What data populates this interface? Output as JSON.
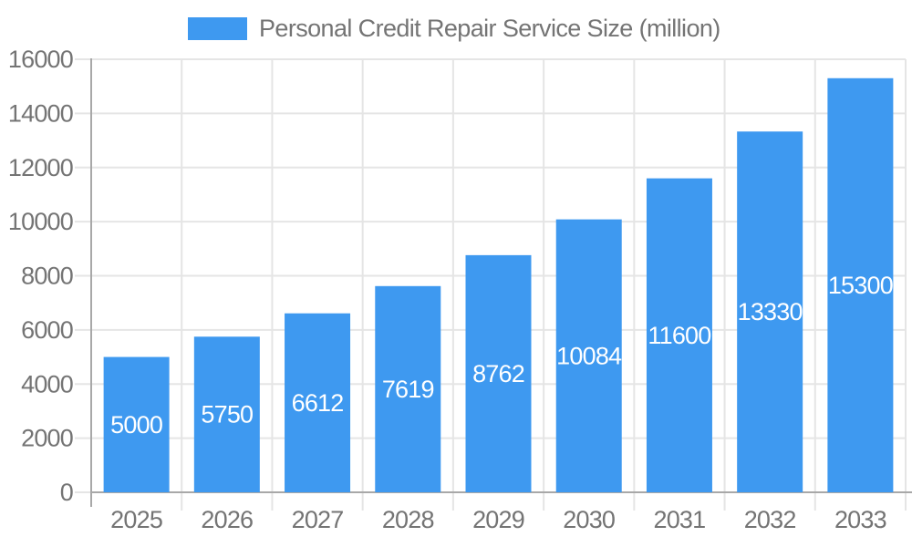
{
  "chart_data": {
    "type": "bar",
    "title": "",
    "series_name": "Personal Credit Repair Service Size (million)",
    "categories": [
      "2025",
      "2026",
      "2027",
      "2028",
      "2029",
      "2030",
      "2031",
      "2032",
      "2033"
    ],
    "values": [
      5000,
      5750,
      6612,
      7619,
      8762,
      10084,
      11600,
      13330,
      15300
    ],
    "bar_labels": [
      "5000",
      "5750",
      "6612",
      "7619",
      "8762",
      "10084",
      "11600",
      "13330",
      "15300"
    ],
    "xlabel": "",
    "ylabel": "",
    "ylim": [
      0,
      16000
    ],
    "yticks": [
      0,
      2000,
      4000,
      6000,
      8000,
      10000,
      12000,
      14000,
      16000
    ],
    "grid": true,
    "legend_position": "top",
    "value_label_position": "inside-center",
    "colors": {
      "bar": "#3E99F0",
      "bar_label": "#FFFFFF",
      "axis_text": "#747474",
      "axis_line": "#A8A8A8",
      "grid_line": "#E5E5E5",
      "background": "#FFFFFF"
    }
  }
}
